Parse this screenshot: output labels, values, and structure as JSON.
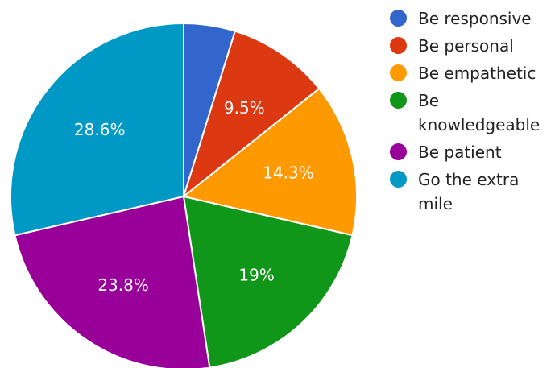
{
  "chart_data": {
    "type": "pie",
    "slices": [
      {
        "name": "Be responsive",
        "value": 4.8,
        "label": "",
        "color": "#3366cc"
      },
      {
        "name": "Be personal",
        "value": 9.5,
        "label": "9.5%",
        "color": "#dc3912"
      },
      {
        "name": "Be empathetic",
        "value": 14.3,
        "label": "14.3%",
        "color": "#ff9900"
      },
      {
        "name": "Be knowledgeable",
        "value": 19,
        "label": "19%",
        "color": "#109618"
      },
      {
        "name": "Be patient",
        "value": 23.8,
        "label": "23.8%",
        "color": "#990099"
      },
      {
        "name": "Go the extra mile",
        "value": 28.6,
        "label": "28.6%",
        "color": "#0099c6"
      }
    ],
    "legend": {
      "position": "right",
      "items": [
        {
          "lines": [
            "Be responsive"
          ],
          "color": "#3366cc"
        },
        {
          "lines": [
            "Be personal"
          ],
          "color": "#dc3912"
        },
        {
          "lines": [
            "Be empathetic"
          ],
          "color": "#ff9900"
        },
        {
          "lines": [
            "Be",
            "knowledgeable"
          ],
          "color": "#109618"
        },
        {
          "lines": [
            "Be patient"
          ],
          "color": "#990099"
        },
        {
          "lines": [
            "Go the extra",
            "mile"
          ],
          "color": "#0099c6"
        }
      ]
    }
  }
}
